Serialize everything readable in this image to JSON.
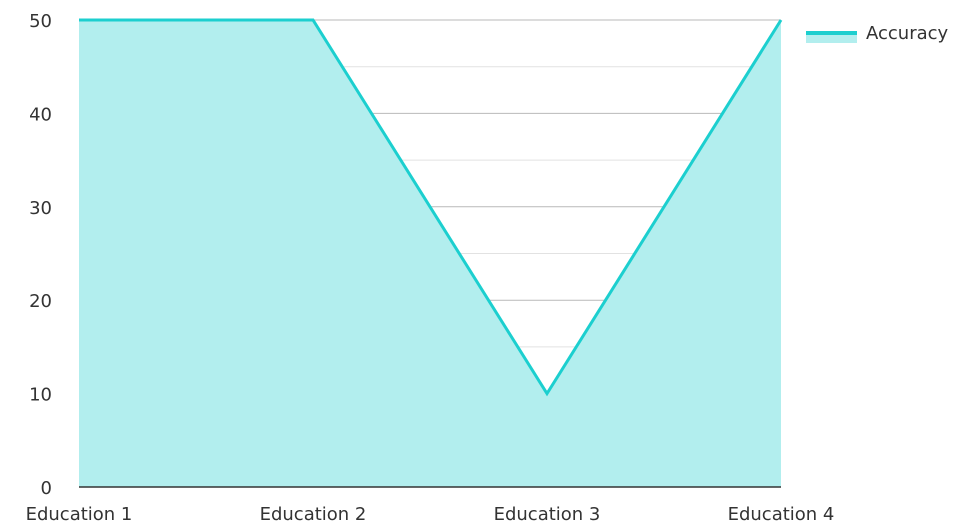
{
  "chart_data": {
    "type": "area",
    "categories": [
      "Education 1",
      "Education 2",
      "Education 3",
      "Education 4"
    ],
    "series": [
      {
        "name": "Accuracy",
        "values": [
          50,
          50,
          10,
          50
        ],
        "color": "#1ccfcf",
        "fill_color": "#b2eeee"
      }
    ],
    "ylim": [
      0,
      50
    ],
    "yticks": [
      0,
      10,
      20,
      30,
      40,
      50
    ],
    "y_tick_labels": [
      "0",
      "10",
      "20",
      "30",
      "40",
      "50"
    ],
    "grid": true,
    "legend_position": "top-right"
  }
}
